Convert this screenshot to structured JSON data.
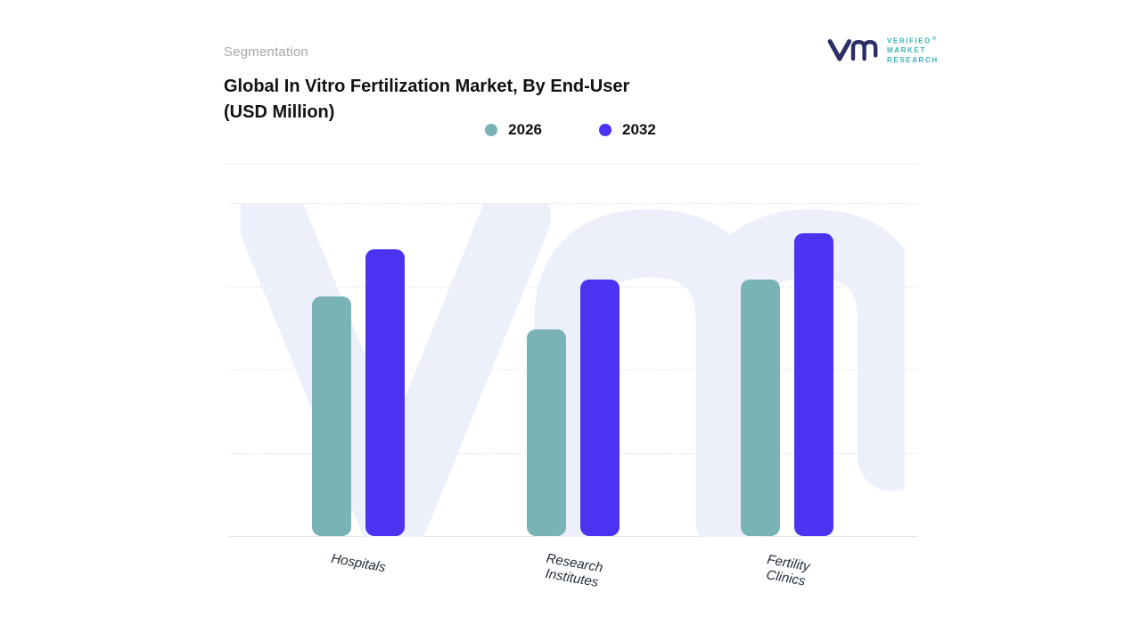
{
  "page": {
    "eyebrow": "Segmentation",
    "title_line1": "Global In Vitro Fertilization Market, By End-User",
    "title_line2": "(USD Million)"
  },
  "logo": {
    "lines": [
      "VERIFIED",
      "MARKET",
      "RESEARCH"
    ],
    "registered": "®"
  },
  "chart_data": {
    "type": "bar",
    "title": "Global In Vitro Fertilization Market, By End-User (USD Million)",
    "categories": [
      "Hospitals",
      "Research Institutes",
      "Fertility Clinics"
    ],
    "category_display": [
      [
        "Hospitals"
      ],
      [
        "Research",
        "Institutes"
      ],
      [
        "Fertility Clinics"
      ]
    ],
    "series": [
      {
        "name": "2026",
        "color": "#79b3b6",
        "values": [
          72,
          62,
          77
        ]
      },
      {
        "name": "2032",
        "color": "#4c33f2",
        "values": [
          86,
          77,
          91
        ]
      }
    ],
    "xlabel": "",
    "ylabel": "",
    "value_axis_labels_visible": false,
    "values_note": "axis unlabeled; values estimated as percent of plot height",
    "ylim": [
      0,
      100
    ],
    "grid": "horizontal dashed",
    "gridline_levels_pct": [
      0,
      25,
      50,
      75
    ],
    "legend_position": "top-center"
  },
  "colors": {
    "series_2026": "#79b3b6",
    "series_2032": "#4c33f2",
    "watermark": "#edeffb",
    "logo_navy": "#2b2f66",
    "logo_teal": "#35b4b8"
  }
}
